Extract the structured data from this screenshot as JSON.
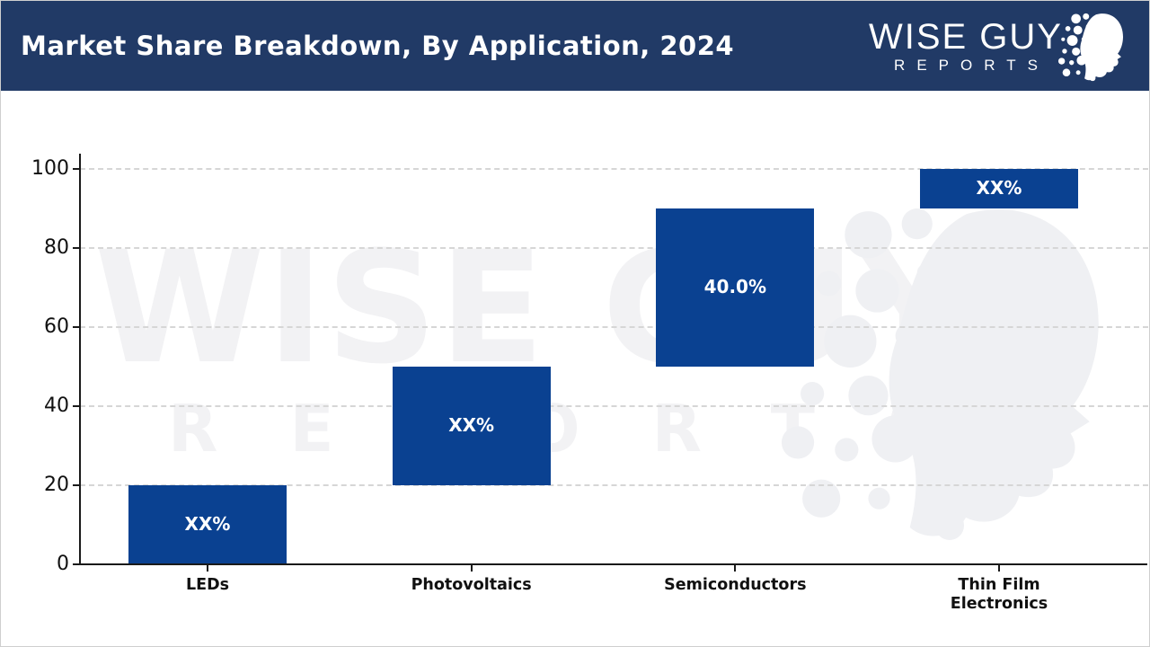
{
  "header": {
    "title": "Market Share Breakdown, By Application, 2024",
    "bg_color": "#213a66",
    "logo": {
      "primary": "WISE GUY",
      "secondary": "REPORTS"
    }
  },
  "watermark": {
    "primary": "WISE GUY",
    "secondary": "REPORTS"
  },
  "chart_data": {
    "type": "bar",
    "subtype": "floating-waterfall",
    "title": "Market Share Breakdown, By Application, 2024",
    "categories": [
      "LEDs",
      "Photovoltaics",
      "Semiconductors",
      "Thin Film\nElectronics"
    ],
    "series": [
      {
        "name": "Market Share",
        "segments": [
          {
            "category": "LEDs",
            "start": 0,
            "end": 20,
            "label": "XX%"
          },
          {
            "category": "Photovoltaics",
            "start": 20,
            "end": 50,
            "label": "XX%"
          },
          {
            "category": "Semiconductors",
            "start": 50,
            "end": 90,
            "label": "40.0%"
          },
          {
            "category": "Thin Film Electronics",
            "start": 90,
            "end": 100,
            "label": "XX%"
          }
        ]
      }
    ],
    "xlabel": "",
    "ylabel": "",
    "ylim": [
      0,
      100
    ],
    "yticks": [
      0,
      20,
      40,
      60,
      80,
      100
    ],
    "grid": "horizontal-dashed",
    "legend": "none",
    "bar_color": "#0a4191",
    "bar_label_color": "#ffffff",
    "axis_color": "#1a1a1a",
    "grid_color": "#d6d6d6"
  }
}
